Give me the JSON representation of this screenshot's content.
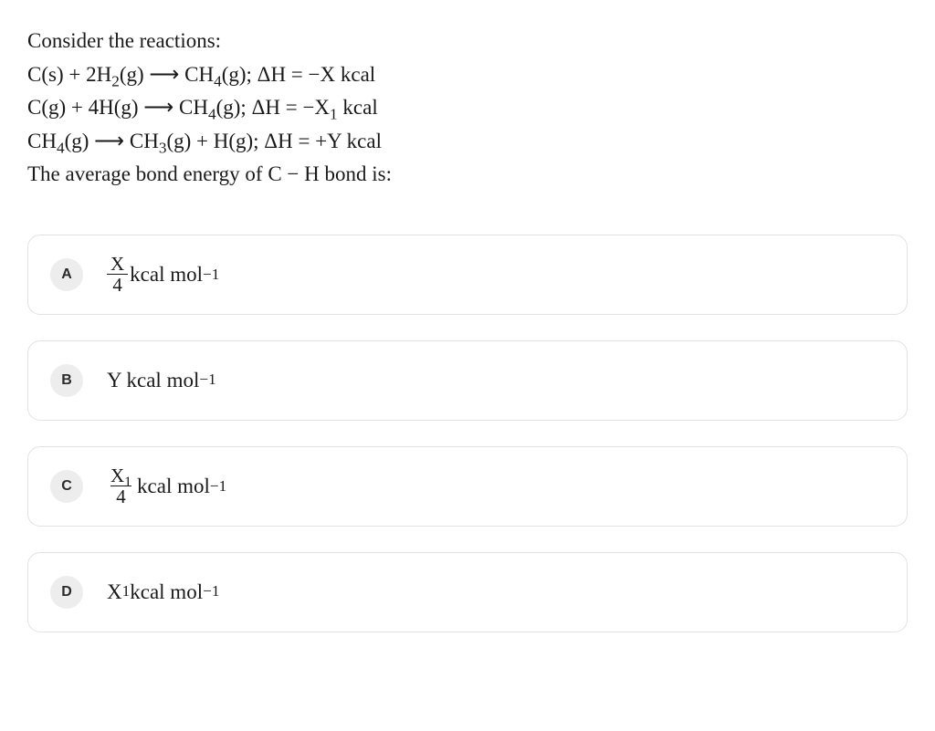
{
  "question": {
    "intro": "Consider the reactions:",
    "line1_a": "C(s) + 2H",
    "line1_b": "(g) ⟶ CH",
    "line1_c": "(g);  ΔH = −X kcal",
    "line2_a": "C(g) + 4H(g) ⟶ CH",
    "line2_b": "(g);  ΔH = −X",
    "line2_c": " kcal",
    "line3_a": "CH",
    "line3_b": "(g) ⟶ CH",
    "line3_c": "(g) + H(g);  ΔH = +Y kcal",
    "line4": "The average bond energy of C − H bond is:"
  },
  "sub2": "2",
  "sub4": "4",
  "sub3": "3",
  "sub1": "1",
  "supNeg1": "−1",
  "options": {
    "a": {
      "letter": "A",
      "num": "X",
      "den": "4",
      "tail": "kcal mol"
    },
    "b": {
      "letter": "B",
      "text": "Y kcal mol"
    },
    "c": {
      "letter": "C",
      "numPre": "X",
      "numSub": "1",
      "den": "4",
      "tail": "kcal mol"
    },
    "d": {
      "letter": "D",
      "textPre": "X",
      "textSub": "1",
      "textTail": " kcal mol"
    }
  }
}
